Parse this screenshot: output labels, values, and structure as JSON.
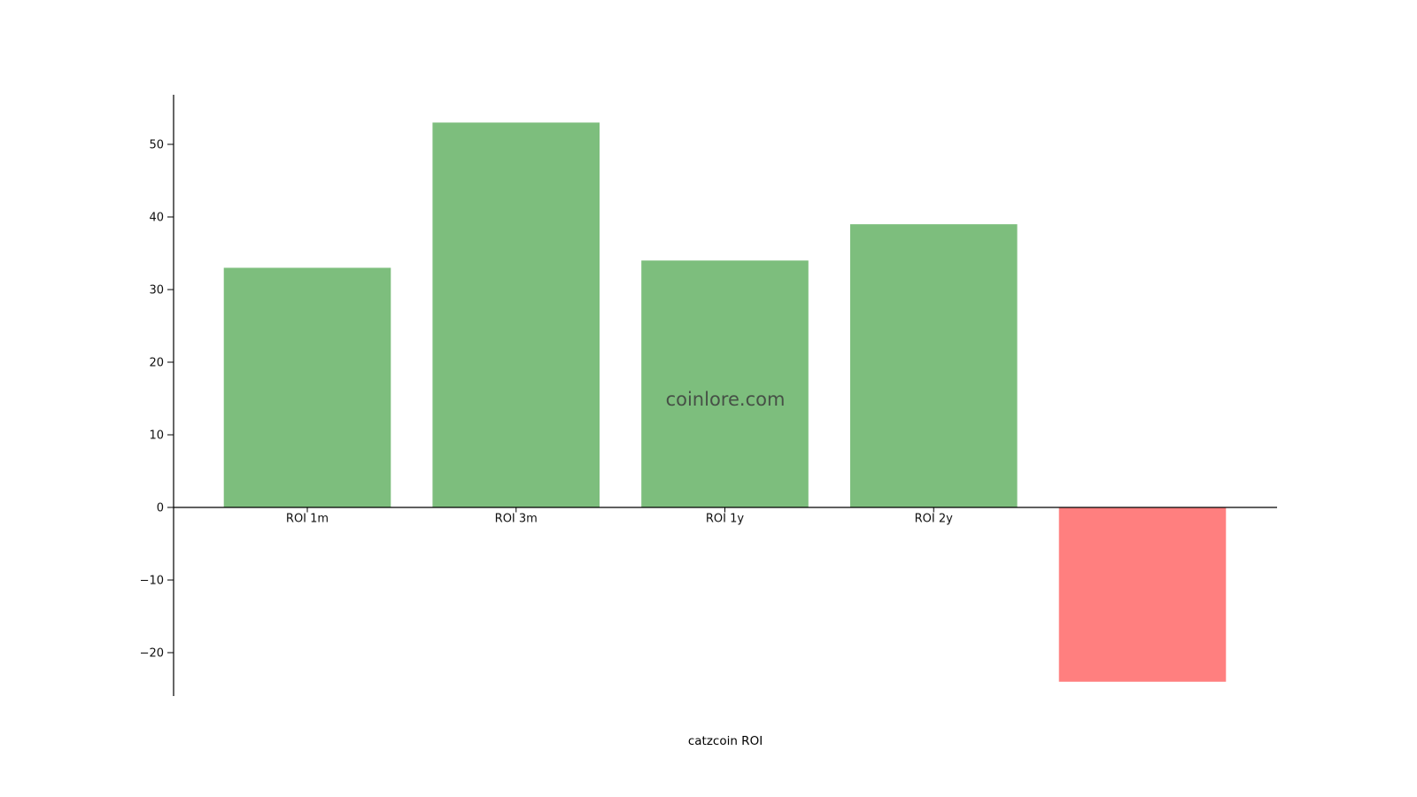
{
  "chart_data": {
    "type": "bar",
    "title": "catzcoin ROI",
    "title_position": "bottom",
    "watermark": "coinlore.com",
    "categories": [
      "ROI 1m",
      "ROI 3m",
      "ROI 1y",
      "ROI 2y",
      ""
    ],
    "values": [
      33,
      53,
      34,
      39,
      -24
    ],
    "xlabel": "catzcoin ROI",
    "ylabel": "",
    "ylim": [
      -26,
      57
    ],
    "grid": false,
    "legend": "none",
    "y_ticks": [
      {
        "value": 50,
        "label": "50"
      },
      {
        "value": 40,
        "label": "40"
      },
      {
        "value": 30,
        "label": "30"
      },
      {
        "value": 20,
        "label": "20"
      },
      {
        "value": 10,
        "label": "10"
      },
      {
        "value": 0,
        "label": "0"
      },
      {
        "value": -10,
        "label": "−10"
      },
      {
        "value": -20,
        "label": "−20"
      }
    ],
    "colors": {
      "positive": "#7dbe7d",
      "negative": "#ff7f7f",
      "axis": "#000000",
      "text": "#101010",
      "watermark": "#3d3d3d",
      "background": "#ffffff"
    }
  }
}
